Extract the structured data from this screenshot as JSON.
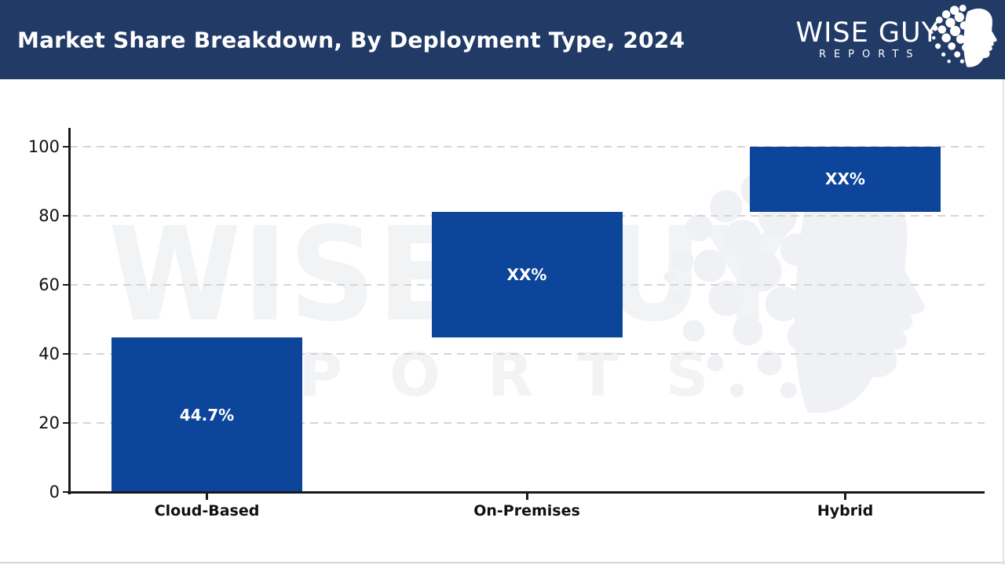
{
  "header": {
    "title": "Market Share Breakdown, By Deployment Type, 2024",
    "logo": {
      "brand_top": "WISE GUY",
      "brand_bottom": "REPORTS",
      "icon": "dotted-face-profile-icon"
    }
  },
  "watermark": {
    "brand_top": "WISE GUY",
    "brand_bottom": "REPORTS",
    "icon": "dotted-face-profile-icon"
  },
  "colors": {
    "header_bg": "#213a66",
    "header_text": "#ffffff",
    "bar_fill": "#0c4599",
    "bar_label_text": "#ffffff",
    "axis": "#1a1a1a",
    "gridline": "#d5d5d5",
    "watermark": "#f2f3f5",
    "background": "#ffffff"
  },
  "chart_data": {
    "type": "bar",
    "subtype": "floating-waterfall",
    "title": "Market Share Breakdown, By Deployment Type, 2024",
    "categories": [
      "Cloud-Based",
      "On-Premises",
      "Hybrid"
    ],
    "bars": [
      {
        "category": "Cloud-Based",
        "start": 0,
        "end": 44.7,
        "label": "44.7%"
      },
      {
        "category": "On-Premises",
        "start": 44.7,
        "end": 81.2,
        "label": "XX%"
      },
      {
        "category": "Hybrid",
        "start": 81.2,
        "end": 100,
        "label": "XX%"
      }
    ],
    "xlabel": "",
    "ylabel": "",
    "yticks": [
      0,
      20,
      40,
      60,
      80,
      100
    ],
    "ylim": [
      0,
      105.5
    ],
    "grid": "dashed horizontal gridlines at each y tick",
    "legend": "none",
    "note": "values for On-Premises and Hybrid are masked as XX% in the source image; start/end estimated from gridlines"
  }
}
